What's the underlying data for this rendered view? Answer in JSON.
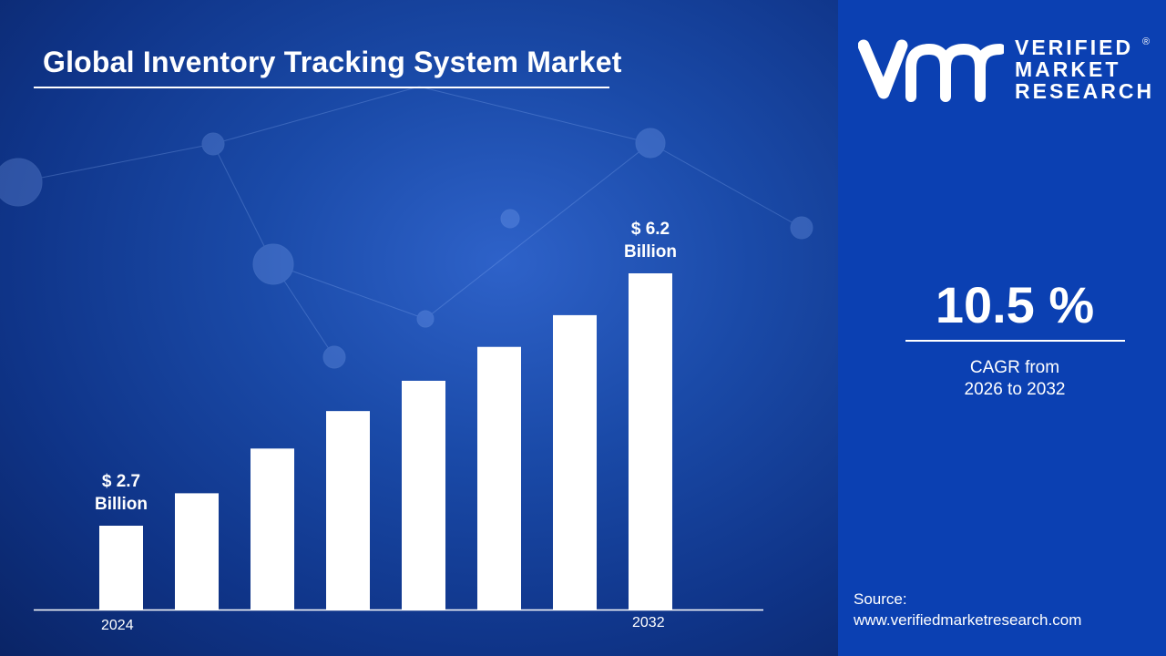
{
  "title": "Global Inventory Tracking System Market",
  "chart_data": {
    "type": "bar",
    "categories": [
      "2024",
      "",
      "",
      "",
      "",
      "",
      "",
      "2032"
    ],
    "values": [
      2.7,
      3.15,
      3.77,
      4.29,
      4.71,
      5.18,
      5.62,
      6.2
    ],
    "data_labels": [
      {
        "index": 0,
        "line1": "$ 2.7",
        "line2": "Billion"
      },
      {
        "index": 7,
        "line1": "$ 6.2",
        "line2": "Billion"
      }
    ],
    "tick_labels": {
      "first": "2024",
      "last": "2032"
    },
    "unit": "Billion USD",
    "bar_color": "#ffffff",
    "grid": false
  },
  "logo": {
    "line1": "VERIFIED",
    "line2": "MARKET",
    "line3": "RESEARCH",
    "mark": "vmr",
    "registered": "®"
  },
  "cagr": {
    "value": "10.5 %",
    "label_line1": "CAGR from",
    "label_line2": "2026 to 2032"
  },
  "source": {
    "label": "Source:",
    "url": "www.verifiedmarketresearch.com"
  },
  "colors": {
    "right_panel": "#0b40b2",
    "background": "#1a4aa8"
  }
}
